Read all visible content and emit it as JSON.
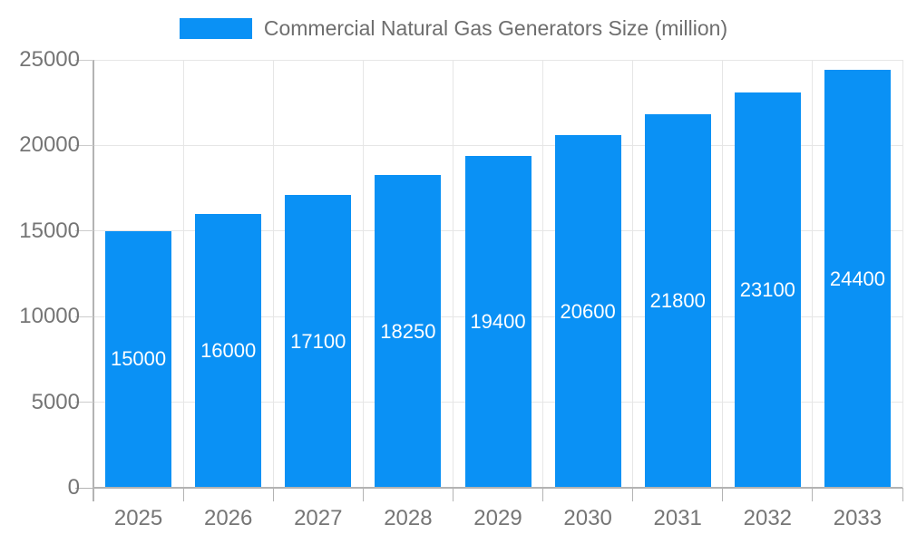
{
  "chart_data": {
    "type": "bar",
    "title": "Commercial Natural Gas Generators Size (million)",
    "legend": {
      "position": "top",
      "entries": [
        "Commercial Natural Gas Generators Size (million)"
      ]
    },
    "categories": [
      "2025",
      "2026",
      "2027",
      "2028",
      "2029",
      "2030",
      "2031",
      "2032",
      "2033"
    ],
    "series": [
      {
        "name": "Commercial Natural Gas Generators Size (million)",
        "values": [
          15000,
          16000,
          17100,
          18250,
          19400,
          20600,
          21800,
          23100,
          24400
        ],
        "color": "#0a91f5"
      }
    ],
    "value_labels": [
      "15000",
      "16000",
      "17100",
      "18250",
      "19400",
      "20600",
      "21800",
      "23100",
      "24400"
    ],
    "value_label_position": "inside-middle",
    "xlabel": "",
    "ylabel": "",
    "ylim": [
      0,
      25000
    ],
    "yticks": [
      0,
      5000,
      10000,
      15000,
      20000,
      25000
    ],
    "ytick_labels": [
      "0",
      "5000",
      "10000",
      "15000",
      "20000",
      "25000"
    ],
    "grid": true,
    "style": {
      "bar_color": "#0a91f5",
      "grid_color": "#e6e6e6",
      "axis_color": "#b3b3b3",
      "tick_dash_color": "#cccccc",
      "tick_text_color": "#757575",
      "legend_text_color": "#6e6e6e",
      "value_label_color": "#ffffff",
      "background_color": "#ffffff"
    }
  }
}
